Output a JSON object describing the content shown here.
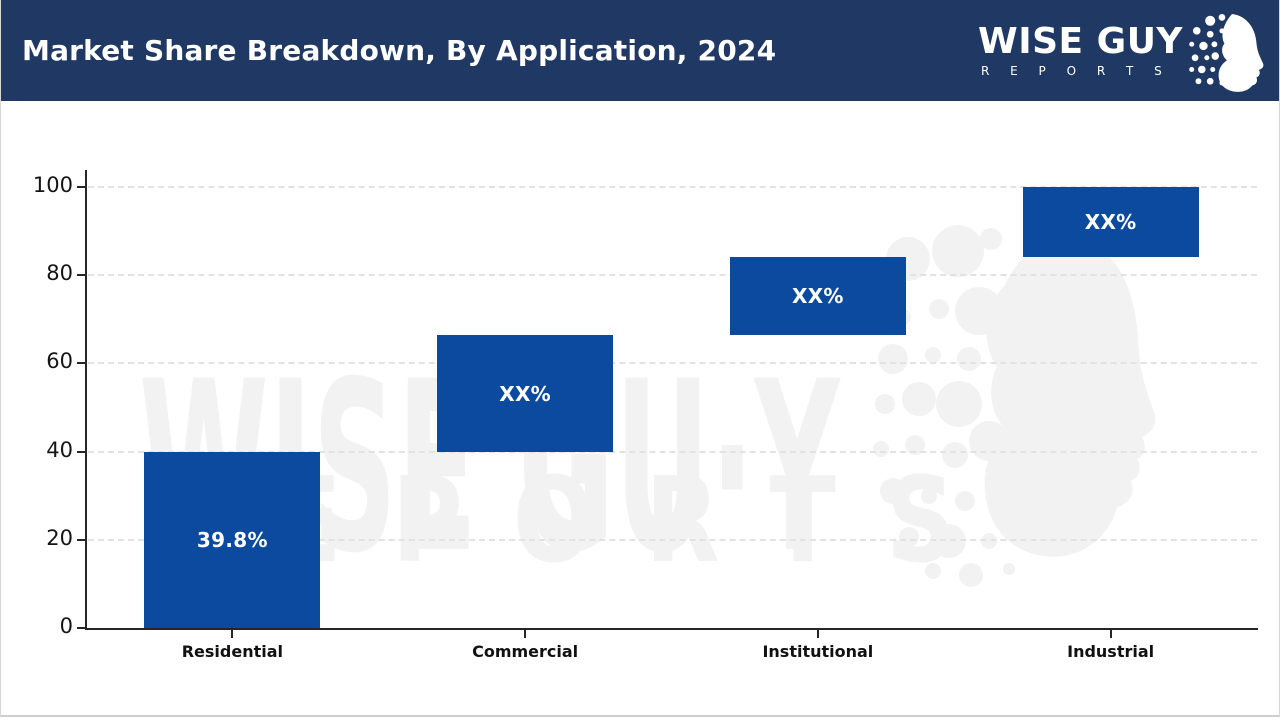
{
  "header": {
    "title": "Market Share Breakdown, By Application, 2024",
    "logo": {
      "line1": "WISE GUY",
      "line2": "R E P O R T S"
    }
  },
  "watermark": {
    "line1": "WISE GU·Y",
    "line2": "R E P O R T S"
  },
  "colors": {
    "header_bg": "#1f3864",
    "bar": "#0b4a9e",
    "grid": "#e2e2e2",
    "axis": "#262626",
    "bar_label": "#ffffff",
    "watermark": "#f2f2f2"
  },
  "chart_data": {
    "type": "bar",
    "subtype": "waterfall",
    "title": "Market Share Breakdown, By Application, 2024",
    "categories": [
      "Residential",
      "Commercial",
      "Institutional",
      "Industrial"
    ],
    "segments": [
      {
        "category": "Residential",
        "start": 0,
        "end": 39.8,
        "label": "39.8%"
      },
      {
        "category": "Commercial",
        "start": 39.8,
        "end": 66.4,
        "label": "XX%"
      },
      {
        "category": "Institutional",
        "start": 66.4,
        "end": 84.1,
        "label": "XX%"
      },
      {
        "category": "Industrial",
        "start": 84.1,
        "end": 100,
        "label": "XX%"
      }
    ],
    "xlabel": "",
    "ylabel": "",
    "ylim": [
      0,
      100
    ],
    "y_ticks": [
      0,
      20,
      40,
      60,
      80,
      100
    ],
    "grid": "horizontal-dashed",
    "legend": "none"
  }
}
